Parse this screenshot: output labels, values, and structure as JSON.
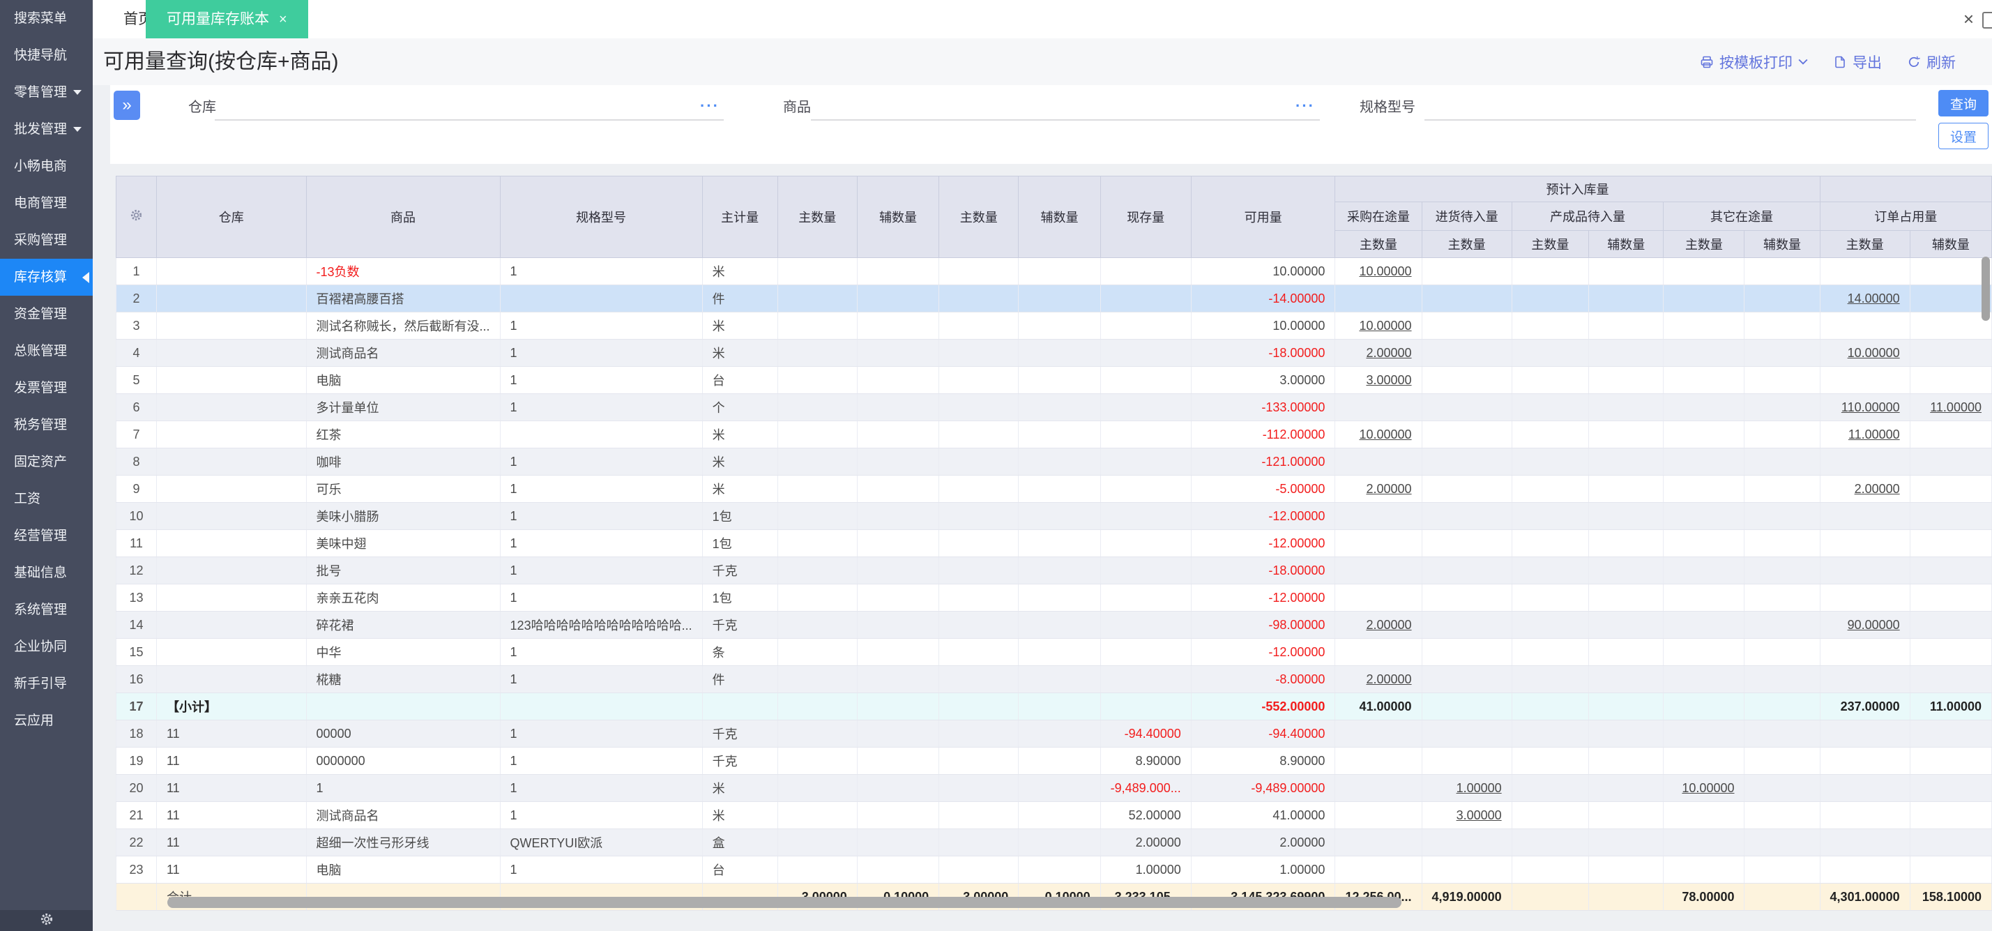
{
  "window": {
    "close_glyph": "×"
  },
  "tabs": {
    "home": "首页",
    "active": {
      "label": "可用量库存账本",
      "close_glyph": "×"
    }
  },
  "page": {
    "title": "可用量查询(按仓库+商品)"
  },
  "toolbar": {
    "print": "按模板打印",
    "export": "导出",
    "refresh": "刷新"
  },
  "filters": {
    "collapse_glyph": "»",
    "fields": [
      {
        "label": "仓库",
        "value": "",
        "picker": "···"
      },
      {
        "label": "商品",
        "value": "",
        "picker": "···"
      },
      {
        "label": "规格型号",
        "value": ""
      }
    ],
    "search_button": "查询",
    "settings_button": "设置"
  },
  "sidebar": {
    "items": [
      {
        "label": "搜索菜单"
      },
      {
        "label": "快捷导航"
      },
      {
        "label": "零售管理",
        "caret": true
      },
      {
        "label": "批发管理",
        "caret": true
      },
      {
        "label": "小畅电商"
      },
      {
        "label": "电商管理"
      },
      {
        "label": "采购管理"
      },
      {
        "label": "库存核算",
        "active": true
      },
      {
        "label": "资金管理"
      },
      {
        "label": "总账管理"
      },
      {
        "label": "发票管理"
      },
      {
        "label": "税务管理"
      },
      {
        "label": "固定资产"
      },
      {
        "label": "工资"
      },
      {
        "label": "经营管理"
      },
      {
        "label": "基础信息"
      },
      {
        "label": "系统管理"
      },
      {
        "label": "企业协同"
      },
      {
        "label": "新手引导"
      },
      {
        "label": "云应用"
      }
    ]
  },
  "colors": {
    "accent_blue": "#4e8cf5",
    "tab_green": "#3fcc9d",
    "sidebar_bg": "#464c5e",
    "sidebar_active": "#1d87f6",
    "toolbar_blue": "#6274dd",
    "negative_red": "#f21d1d",
    "header_bg": "#e1e3ee",
    "selected_row": "#cfe2f8",
    "subtotal_row": "#e9f9fa",
    "total_row": "#fdf3dd"
  },
  "table": {
    "header": {
      "warehouse": "仓库",
      "product": "商品",
      "spec": "规格型号",
      "unit": "主计量",
      "main_qty": "主数量",
      "aux_qty": "辅数量",
      "onhand": "现存量",
      "available": "可用量",
      "expected_group": "预计入库量",
      "purchase_transit": "采购在途量",
      "incoming_pending": "进货待入量",
      "finished_pending": "产成品待入量",
      "other_transit": "其它在途量",
      "order_occupied": "订单占用量",
      "sub": [
        "主数量",
        "主数量",
        "主数量",
        "辅数量",
        "主数量",
        "辅数量",
        "主数量",
        "辅数量"
      ]
    },
    "rows": [
      {
        "num": "1",
        "cells": [
          "",
          {
            "v": "-13负数",
            "r": 1
          },
          "1",
          "米",
          "",
          "",
          "",
          "",
          "",
          "10.00000",
          {
            "v": "10.00000",
            "u": 1
          },
          "",
          "",
          "",
          "",
          "",
          "",
          ""
        ]
      },
      {
        "num": "2",
        "cls": "selected",
        "cells": [
          "",
          "百褶裙高腰百搭",
          "",
          "件",
          "",
          "",
          "",
          "",
          "",
          {
            "v": "-14.00000",
            "r": 1
          },
          "",
          "",
          "",
          "",
          "",
          "",
          {
            "v": "14.00000",
            "u": 1
          },
          ""
        ]
      },
      {
        "num": "3",
        "cells": [
          "",
          "测试名称贼长，然后截断有没...",
          "1",
          "米",
          "",
          "",
          "",
          "",
          "",
          "10.00000",
          {
            "v": "10.00000",
            "u": 1
          },
          "",
          "",
          "",
          "",
          "",
          "",
          ""
        ]
      },
      {
        "num": "4",
        "cells": [
          "",
          "测试商品名",
          "1",
          "米",
          "",
          "",
          "",
          "",
          "",
          {
            "v": "-18.00000",
            "r": 1
          },
          {
            "v": "2.00000",
            "u": 1
          },
          "",
          "",
          "",
          "",
          "",
          {
            "v": "10.00000",
            "u": 1
          },
          ""
        ]
      },
      {
        "num": "5",
        "cells": [
          "",
          "电脑",
          "1",
          "台",
          "",
          "",
          "",
          "",
          "",
          "3.00000",
          {
            "v": "3.00000",
            "u": 1
          },
          "",
          "",
          "",
          "",
          "",
          "",
          ""
        ]
      },
      {
        "num": "6",
        "cells": [
          "",
          "多计量单位",
          "1",
          "个",
          "",
          "",
          "",
          "",
          "",
          {
            "v": "-133.00000",
            "r": 1
          },
          "",
          "",
          "",
          "",
          "",
          "",
          {
            "v": "110.00000",
            "u": 1
          },
          {
            "v": "11.00000",
            "u": 1
          }
        ]
      },
      {
        "num": "7",
        "cells": [
          "",
          "红茶",
          "",
          "米",
          "",
          "",
          "",
          "",
          "",
          {
            "v": "-112.00000",
            "r": 1
          },
          {
            "v": "10.00000",
            "u": 1
          },
          "",
          "",
          "",
          "",
          "",
          {
            "v": "11.00000",
            "u": 1
          },
          ""
        ]
      },
      {
        "num": "8",
        "cells": [
          "",
          "咖啡",
          "1",
          "米",
          "",
          "",
          "",
          "",
          "",
          {
            "v": "-121.00000",
            "r": 1
          },
          "",
          "",
          "",
          "",
          "",
          "",
          "",
          ""
        ]
      },
      {
        "num": "9",
        "cells": [
          "",
          "可乐",
          "1",
          "米",
          "",
          "",
          "",
          "",
          "",
          {
            "v": "-5.00000",
            "r": 1
          },
          {
            "v": "2.00000",
            "u": 1
          },
          "",
          "",
          "",
          "",
          "",
          {
            "v": "2.00000",
            "u": 1
          },
          ""
        ]
      },
      {
        "num": "10",
        "cells": [
          "",
          "美味小腊肠",
          "1",
          "1包",
          "",
          "",
          "",
          "",
          "",
          {
            "v": "-12.00000",
            "r": 1
          },
          "",
          "",
          "",
          "",
          "",
          "",
          "",
          ""
        ]
      },
      {
        "num": "11",
        "cells": [
          "",
          "美味中翅",
          "1",
          "1包",
          "",
          "",
          "",
          "",
          "",
          {
            "v": "-12.00000",
            "r": 1
          },
          "",
          "",
          "",
          "",
          "",
          "",
          "",
          ""
        ]
      },
      {
        "num": "12",
        "cells": [
          "",
          "批号",
          "1",
          "千克",
          "",
          "",
          "",
          "",
          "",
          {
            "v": "-18.00000",
            "r": 1
          },
          "",
          "",
          "",
          "",
          "",
          "",
          "",
          ""
        ]
      },
      {
        "num": "13",
        "cells": [
          "",
          "亲亲五花肉",
          "1",
          "1包",
          "",
          "",
          "",
          "",
          "",
          {
            "v": "-12.00000",
            "r": 1
          },
          "",
          "",
          "",
          "",
          "",
          "",
          "",
          ""
        ]
      },
      {
        "num": "14",
        "cells": [
          "",
          "碎花裙",
          "123哈哈哈哈哈哈哈哈哈哈哈哈...",
          "千克",
          "",
          "",
          "",
          "",
          "",
          {
            "v": "-98.00000",
            "r": 1
          },
          {
            "v": "2.00000",
            "u": 1
          },
          "",
          "",
          "",
          "",
          "",
          {
            "v": "90.00000",
            "u": 1
          },
          ""
        ]
      },
      {
        "num": "15",
        "cells": [
          "",
          "中华",
          "1",
          "条",
          "",
          "",
          "",
          "",
          "",
          {
            "v": "-12.00000",
            "r": 1
          },
          "",
          "",
          "",
          "",
          "",
          "",
          "",
          ""
        ]
      },
      {
        "num": "16",
        "cells": [
          "",
          "椛糖",
          "1",
          "件",
          "",
          "",
          "",
          "",
          "",
          {
            "v": "-8.00000",
            "r": 1
          },
          {
            "v": "2.00000",
            "u": 1
          },
          "",
          "",
          "",
          "",
          "",
          "",
          ""
        ]
      },
      {
        "num": "17",
        "cls": "subtotal",
        "cells": [
          {
            "v": "【小计】",
            "b": 1
          },
          "",
          "",
          "",
          "",
          "",
          "",
          "",
          "",
          {
            "v": "-552.00000",
            "r": 1,
            "b": 1
          },
          {
            "v": "41.00000",
            "b": 1
          },
          "",
          "",
          "",
          "",
          "",
          {
            "v": "237.00000",
            "b": 1
          },
          {
            "v": "11.00000",
            "b": 1
          }
        ]
      },
      {
        "num": "18",
        "cells": [
          "11",
          "00000",
          "1",
          "千克",
          "",
          "",
          "",
          "",
          {
            "v": "-94.40000",
            "r": 1
          },
          {
            "v": "-94.40000",
            "r": 1
          },
          "",
          "",
          "",
          "",
          "",
          "",
          "",
          ""
        ]
      },
      {
        "num": "19",
        "cells": [
          "11",
          "0000000",
          "1",
          "千克",
          "",
          "",
          "",
          "",
          "8.90000",
          "8.90000",
          "",
          "",
          "",
          "",
          "",
          "",
          "",
          ""
        ]
      },
      {
        "num": "20",
        "cells": [
          "11",
          "1",
          "1",
          "米",
          "",
          "",
          "",
          "",
          {
            "v": "-9,489.000...",
            "r": 1
          },
          {
            "v": "-9,489.00000",
            "r": 1
          },
          "",
          {
            "v": "1.00000",
            "u": 1
          },
          "",
          "",
          {
            "v": "10.00000",
            "u": 1
          },
          "",
          "",
          ""
        ]
      },
      {
        "num": "21",
        "cells": [
          "11",
          "测试商品名",
          "1",
          "米",
          "",
          "",
          "",
          "",
          "52.00000",
          "41.00000",
          "",
          {
            "v": "3.00000",
            "u": 1
          },
          "",
          "",
          "",
          "",
          "",
          ""
        ]
      },
      {
        "num": "22",
        "cells": [
          "11",
          "超细一次性弓形牙线",
          "QWERTYUI欧派",
          "盒",
          "",
          "",
          "",
          "",
          "2.00000",
          "2.00000",
          "",
          "",
          "",
          "",
          "",
          "",
          "",
          ""
        ]
      },
      {
        "num": "23",
        "cells": [
          "11",
          "电脑",
          "1",
          "台",
          "",
          "",
          "",
          "",
          "1.00000",
          "1.00000",
          "",
          "",
          "",
          "",
          "",
          "",
          "",
          ""
        ]
      }
    ],
    "total": {
      "num": "",
      "cells": [
        {
          "v": "合计"
        },
        "",
        "",
        "",
        {
          "v": "3.00000",
          "b": 1
        },
        {
          "v": "0.10000",
          "b": 1
        },
        {
          "v": "3.00000",
          "b": 1
        },
        {
          "v": "0.10000",
          "b": 1
        },
        {
          "v": "3,233,105...",
          "b": 1
        },
        {
          "v": "3,145,323.69900",
          "b": 1
        },
        {
          "v": "12,256.00...",
          "b": 1
        },
        {
          "v": "4,919.00000",
          "b": 1
        },
        "",
        "",
        {
          "v": "78.00000",
          "b": 1
        },
        "",
        {
          "v": "4,301.00000",
          "b": 1
        },
        {
          "v": "158.10000",
          "b": 1
        }
      ]
    }
  }
}
